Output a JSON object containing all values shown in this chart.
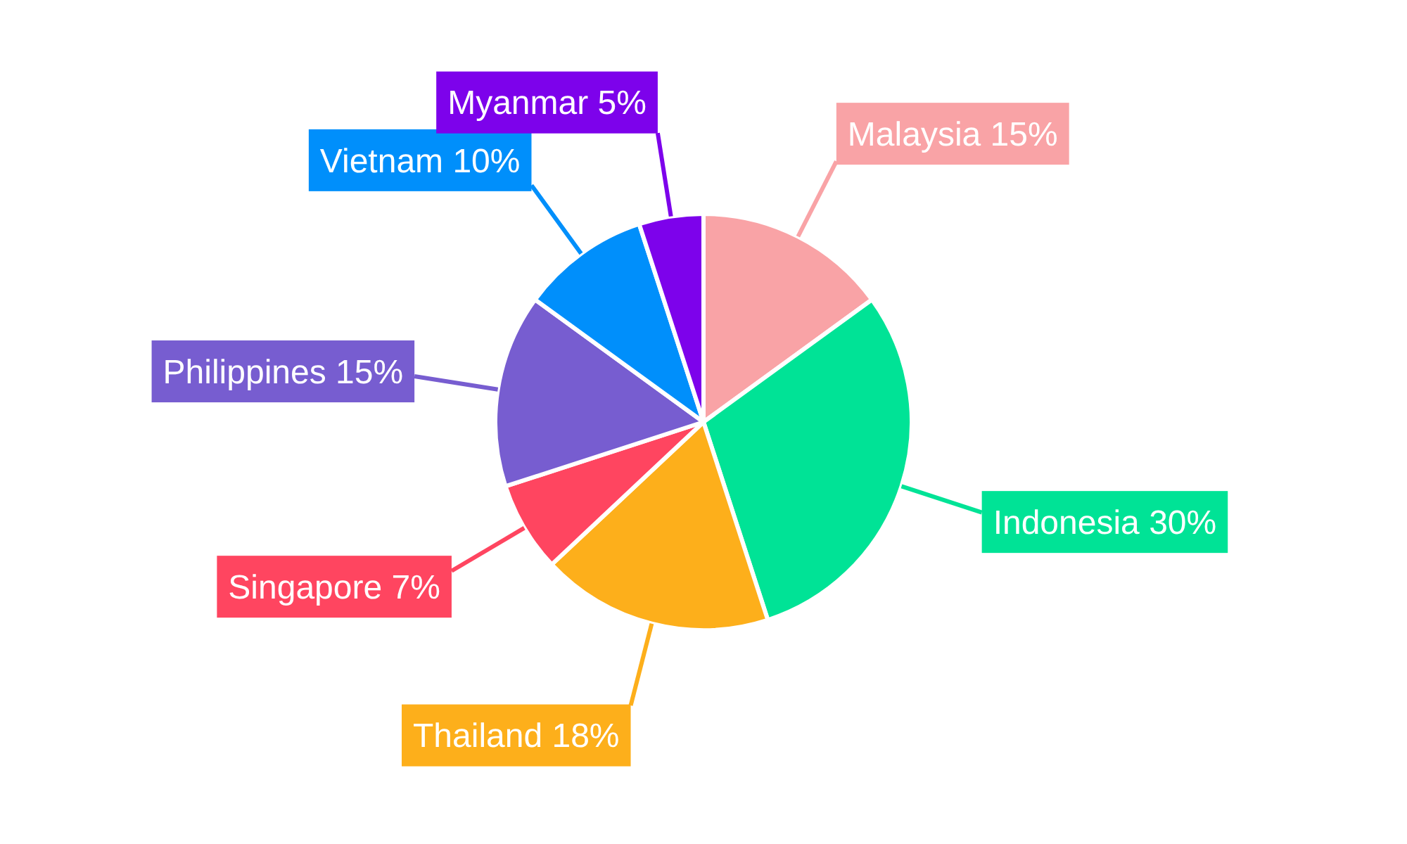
{
  "chart_data": {
    "type": "pie",
    "categories": [
      "Malaysia",
      "Indonesia",
      "Thailand",
      "Singapore",
      "Philippines",
      "Vietnam",
      "Myanmar"
    ],
    "values": [
      15,
      30,
      18,
      7,
      15,
      10,
      5
    ],
    "colors": [
      "#f9a3a6",
      "#00e396",
      "#fdaf1b",
      "#ff4560",
      "#775dd0",
      "#008ffb",
      "#7d02eb"
    ],
    "value_labels": [
      "15%",
      "30%",
      "18%",
      "7%",
      "15%",
      "10%",
      "5%"
    ]
  }
}
